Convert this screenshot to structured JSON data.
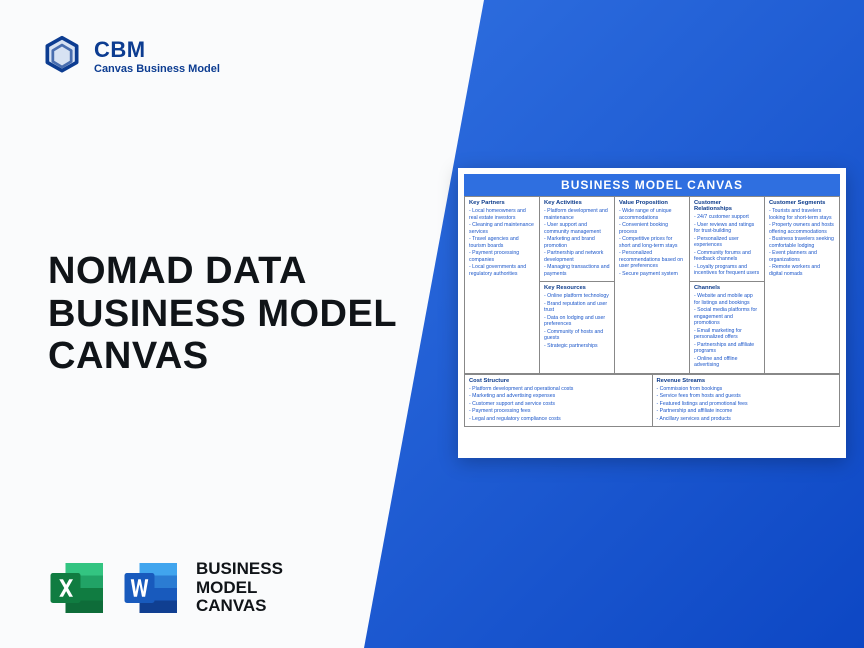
{
  "colors": {
    "brand_blue": "#0c3c91",
    "gradient_from": "#2f6fe0",
    "gradient_to": "#0d47c4",
    "text_dark": "#101418",
    "canvas_text": "#1b56c9",
    "canvas_border": "#888888",
    "page_bg": "#fafbfc",
    "excel_green_dark": "#107c41",
    "excel_green_light": "#21a366",
    "word_blue_dark": "#103f91",
    "word_blue_light": "#2b7cd3"
  },
  "logo": {
    "abbr": "CBM",
    "full": "Canvas Business Model"
  },
  "headline": {
    "line1": "NOMAD DATA",
    "line2": "BUSINESS MODEL",
    "line3": "CANVAS"
  },
  "apps_label": {
    "line1": "BUSINESS",
    "line2": "MODEL",
    "line3": "CANVAS"
  },
  "canvas": {
    "title": "BUSINESS MODEL CANVAS",
    "key_partners": {
      "label": "Key Partners",
      "items": [
        "Local homeowners and real estate investors",
        "Cleaning and maintenance services",
        "Travel agencies and tourism boards",
        "Payment processing companies",
        "Local governments and regulatory authorities"
      ]
    },
    "key_activities": {
      "label": "Key Activities",
      "items": [
        "Platform development and maintenance",
        "User support and community management",
        "Marketing and brand promotion",
        "Partnership and network development",
        "Managing transactions and payments"
      ]
    },
    "key_resources": {
      "label": "Key Resources",
      "items": [
        "Online platform technology",
        "Brand reputation and user trust",
        "Data on lodging and user preferences",
        "Community of hosts and guests",
        "Strategic partnerships"
      ]
    },
    "value_proposition": {
      "label": "Value Proposition",
      "items": [
        "Wide range of unique accommodations",
        "Convenient booking process",
        "Competitive prices for short and long-term stays",
        "Personalized recommendations based on user preferences",
        "Secure payment system"
      ]
    },
    "customer_relationships": {
      "label": "Customer Relationships",
      "items": [
        "24/7 customer support",
        "User reviews and ratings for trust-building",
        "Personalized user experiences",
        "Community forums and feedback channels",
        "Loyalty programs and incentives for frequent users"
      ]
    },
    "channels": {
      "label": "Channels",
      "items": [
        "Website and mobile app for listings and bookings",
        "Social media platforms for engagement and promotions",
        "Email marketing for personalized offers",
        "Partnerships and affiliate programs",
        "Online and offline advertising"
      ]
    },
    "customer_segments": {
      "label": "Customer Segments",
      "items": [
        "Tourists and travelers looking for short-term stays",
        "Property owners and hosts offering accommodations",
        "Business travelers seeking comfortable lodging",
        "Event planners and organizations",
        "Remote workers and digital nomads"
      ]
    },
    "cost_structure": {
      "label": "Cost Structure",
      "items": [
        "Platform development and operational costs",
        "Marketing and advertising expenses",
        "Customer support and service costs",
        "Payment processing fees",
        "Legal and regulatory compliance costs"
      ]
    },
    "revenue_streams": {
      "label": "Revenue Streams",
      "items": [
        "Commission from bookings",
        "Service fees from hosts and guests",
        "Featured listings and promotional fees",
        "Partnership and affiliate income",
        "Ancillary services and products"
      ]
    }
  }
}
